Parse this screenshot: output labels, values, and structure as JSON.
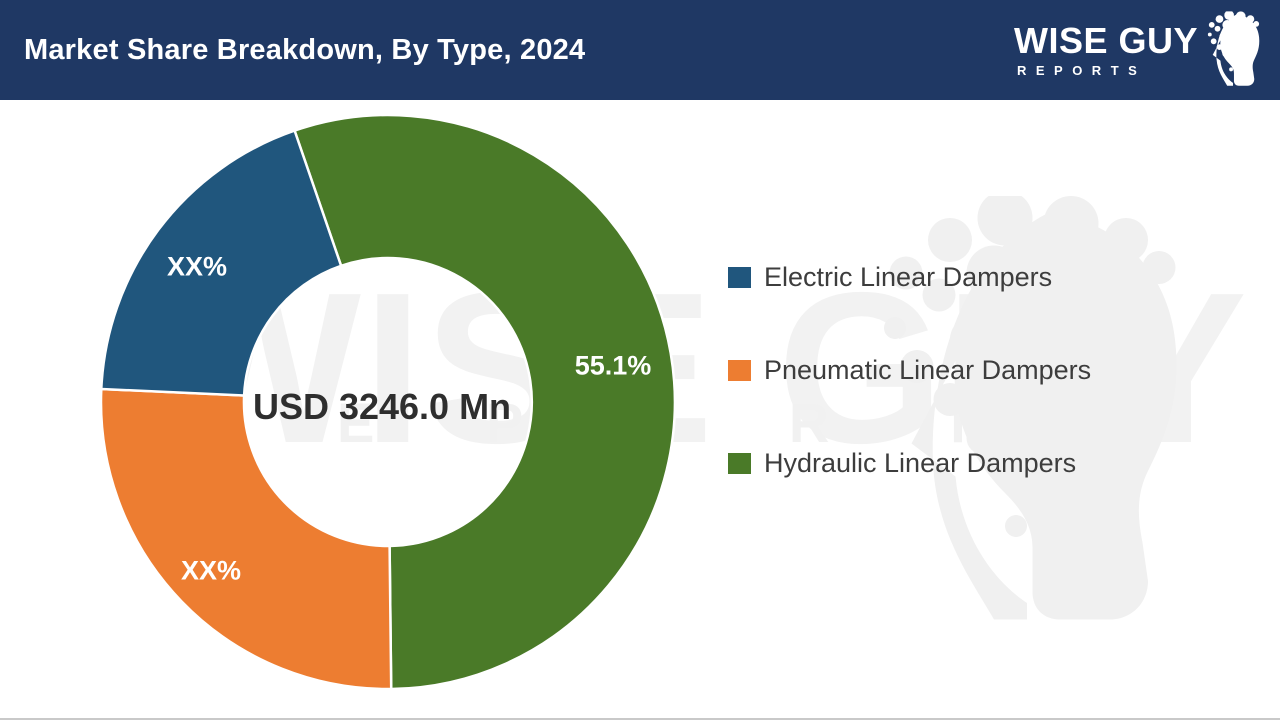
{
  "header": {
    "title": "Market Share Breakdown, By Type, 2024",
    "logo": {
      "line1": "WISE GUY",
      "line2": "REPORTS"
    }
  },
  "watermark": {
    "big_text": "WISE GUY",
    "reports_text": "R E P O R T S"
  },
  "chart_data": {
    "type": "pie",
    "subtype": "donut",
    "title": "Market Share Breakdown, By Type, 2024",
    "center_label": "USD 3246.0 Mn",
    "categories": [
      "Electric Linear Dampers",
      "Pneumatic Linear Dampers",
      "Hydraulic Linear Dampers"
    ],
    "values_pct": [
      19.0,
      25.9,
      55.1
    ],
    "slice_labels": [
      "XX%",
      "XX%",
      "55.1%"
    ],
    "colors": [
      "#20567d",
      "#ed7d31",
      "#4a7a28"
    ],
    "start_angle_deg": -19,
    "direction": "clockwise",
    "draw_order": [
      2,
      1,
      0
    ],
    "inner_radius_ratio": 0.5,
    "gap_stroke_color": "#ffffff",
    "legend_position": "right",
    "label_text_color": "#ffffff",
    "center_label_color": "#2e2e2e"
  },
  "legend": {
    "items": [
      {
        "label": "Electric Linear Dampers"
      },
      {
        "label": "Pneumatic Linear Dampers"
      },
      {
        "label": "Hydraulic Linear Dampers"
      }
    ]
  }
}
